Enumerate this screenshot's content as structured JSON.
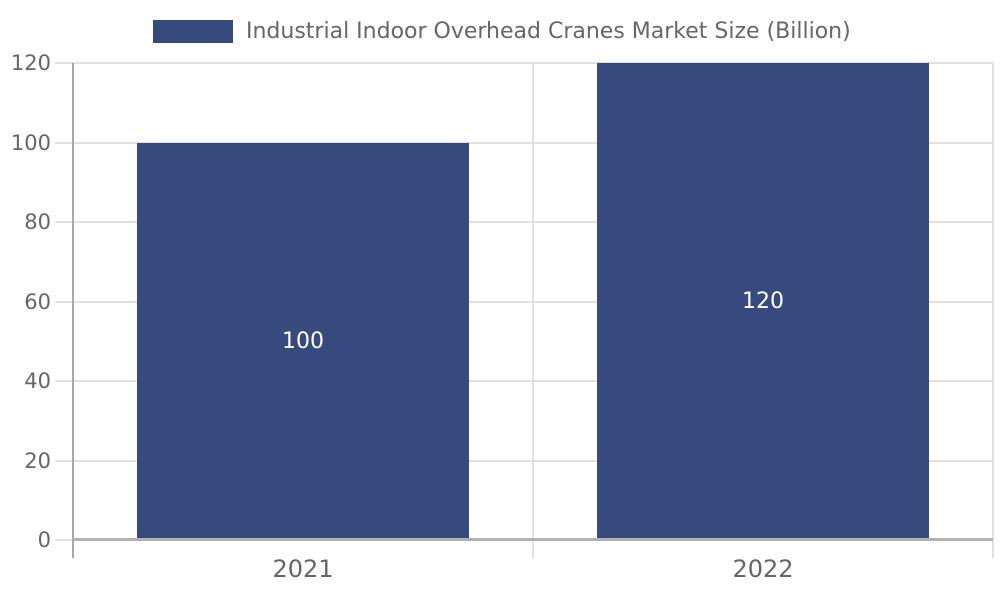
{
  "legend": {
    "label": "Industrial Indoor Overhead Cranes Market Size (Billion)"
  },
  "colors": {
    "bar": "#364A7E",
    "grid": "#e0e0e0",
    "axis": "#a8a8a8",
    "axis_strong": "#b1b1b1",
    "tick_label": "#666666",
    "legend_text": "#666666",
    "data_label": "#ffffff",
    "background": "#ffffff"
  },
  "chart_data": {
    "type": "bar",
    "title": "Industrial Indoor Overhead Cranes Market Size (Billion)",
    "categories": [
      "2021",
      "2022"
    ],
    "series": [
      {
        "name": "Industrial Indoor Overhead Cranes Market Size (Billion)",
        "values": [
          100,
          120
        ]
      }
    ],
    "data_labels": [
      "100",
      "120"
    ],
    "xlabel": "",
    "ylabel": "",
    "ylim": [
      0,
      120
    ],
    "yticks": [
      0,
      20,
      40,
      60,
      80,
      100,
      120
    ],
    "grid": true,
    "legend_position": "top-center",
    "bar_width_fraction": 0.72
  }
}
